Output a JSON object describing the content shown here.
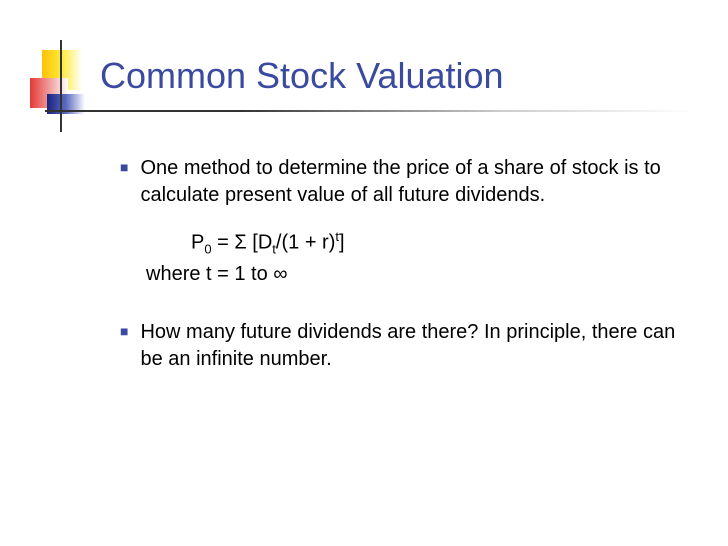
{
  "slide": {
    "title": "Common Stock Valuation",
    "title_color": "#3a4a9f",
    "bullet_color": "#3a4a9f",
    "text_color": "#000000",
    "background_color": "#ffffff",
    "title_fontsize": 36,
    "body_fontsize": 20,
    "decoration": {
      "yellow": "#ffc107",
      "red": "#e53935",
      "blue": "#1a237e",
      "line_color": "#333333"
    },
    "bullets": [
      {
        "text": "One method to determine the price of a share of stock is to calculate present value of all future dividends."
      },
      {
        "text": "How many future dividends are there?  In principle, there can be an infinite number."
      }
    ],
    "formula": {
      "p_label": "P",
      "p_sub": "0",
      "equals": " = Σ [D",
      "d_sub": "t",
      "divisor": "/(1 + r)",
      "exp": "t",
      "close": "]",
      "where_prefix": "where t = 1 to ",
      "infinity": "∞"
    }
  }
}
